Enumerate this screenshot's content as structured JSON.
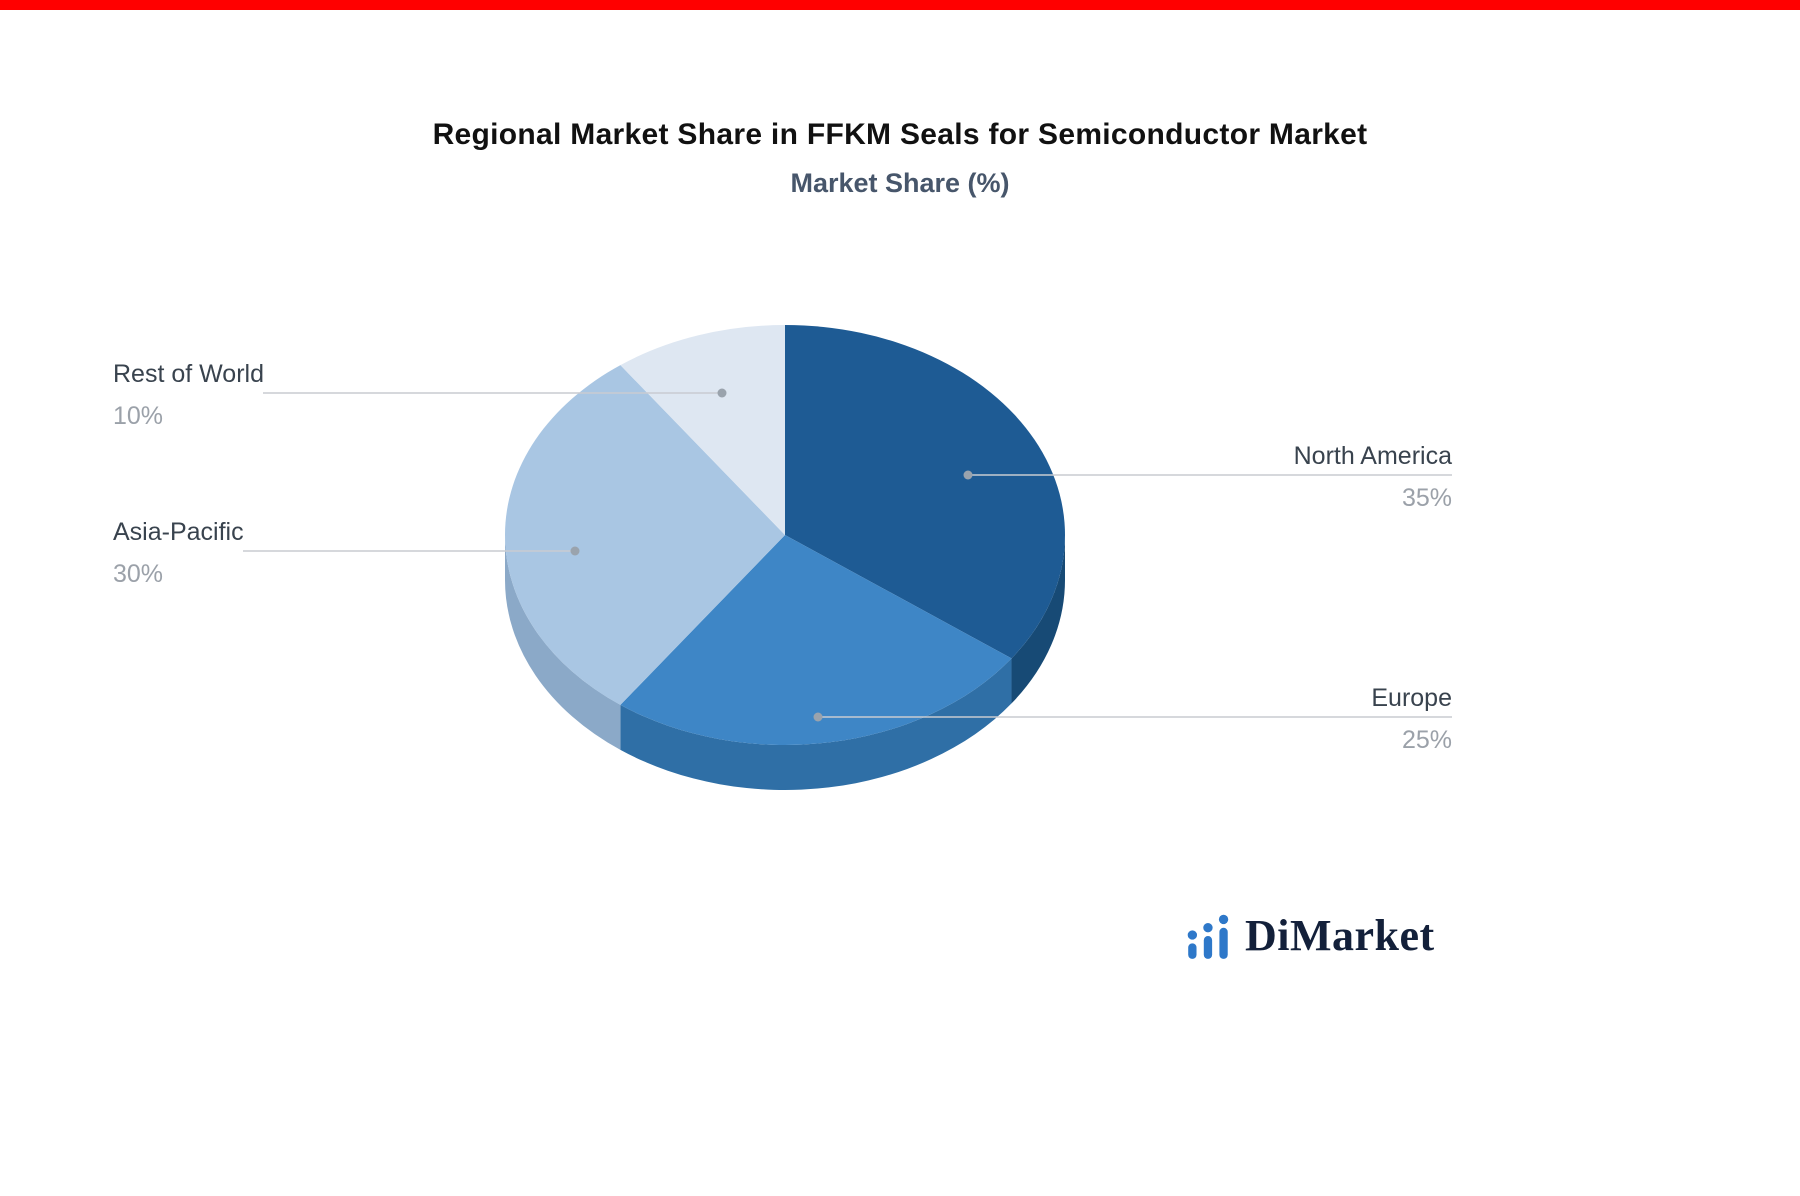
{
  "page": {
    "top_bar_color": "#FF0000",
    "background": "#FFFFFF"
  },
  "header": {
    "title": "Regional Market Share in FFKM Seals for Semiconductor Market",
    "subtitle": "Market Share (%)"
  },
  "chart_data": {
    "type": "pie",
    "style": "3d-pie",
    "title": "Regional Market Share in FFKM Seals for Semiconductor Market",
    "subtitle": "Market Share (%)",
    "unit": "%",
    "start_angle_deg": 0,
    "clockwise": true,
    "series": [
      {
        "name": "North America",
        "value": 35,
        "label": "35%",
        "color": "#1E5B94",
        "side_color": "#174A75",
        "label_side": "right"
      },
      {
        "name": "Europe",
        "value": 25,
        "label": "25%",
        "color": "#3E86C6",
        "side_color": "#2F6FA6",
        "label_side": "right"
      },
      {
        "name": "Asia-Pacific",
        "value": 30,
        "label": "30%",
        "color": "#A9C6E3",
        "side_color": "#8BA9C8",
        "label_side": "left"
      },
      {
        "name": "Rest of World",
        "value": 10,
        "label": "10%",
        "color": "#DEE7F2",
        "side_color": "#C2CFDF",
        "label_side": "left"
      }
    ],
    "leader_line_color": "#C9CCD1",
    "leader_dot_color": "#9AA3AD"
  },
  "brand": {
    "name": "DiMarket",
    "icon": "bar-chart-icon",
    "icon_color": "#2E78C9",
    "text_color": "#13203A"
  }
}
